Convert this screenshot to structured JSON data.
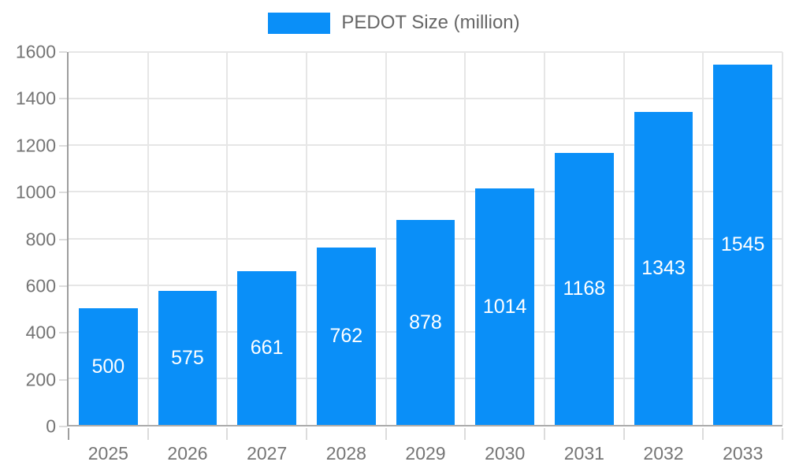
{
  "legend": {
    "label": "PEDOT Size (million)"
  },
  "chart_data": {
    "type": "bar",
    "title": "PEDOT Size (million)",
    "categories": [
      "2025",
      "2026",
      "2027",
      "2028",
      "2029",
      "2030",
      "2031",
      "2032",
      "2033"
    ],
    "values": [
      500,
      575,
      661,
      762,
      878,
      1014,
      1168,
      1343,
      1545
    ],
    "series_name": "PEDOT Size (million)",
    "xlabel": "",
    "ylabel": "",
    "ylim": [
      0,
      1600
    ],
    "ytick_step": 200,
    "ytick_labels": [
      "0",
      "200",
      "400",
      "600",
      "800",
      "1000",
      "1200",
      "1400",
      "1600"
    ],
    "grid": true,
    "legend_position": "top-center",
    "value_labels": "centered-inside-bars",
    "colors": {
      "bar": "#0a8ff8",
      "value_label": "#ffffff",
      "axis_text": "#757575",
      "legend_text": "#666666",
      "gridline": "#e6e6e6",
      "axis_line": "#9e9e9e"
    }
  }
}
